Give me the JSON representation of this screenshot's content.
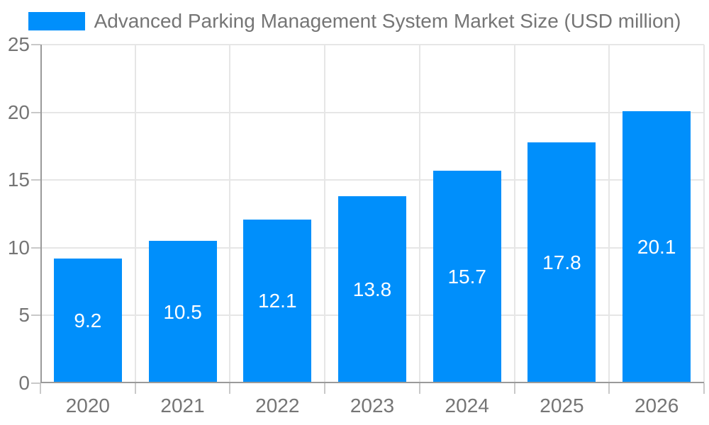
{
  "chart_data": {
    "type": "bar",
    "title": "Advanced Parking Management System Market Size (USD million)",
    "categories": [
      "2020",
      "2021",
      "2022",
      "2023",
      "2024",
      "2025",
      "2026"
    ],
    "values": [
      9.2,
      10.5,
      12.1,
      13.8,
      15.7,
      17.8,
      20.1
    ],
    "value_labels": [
      "9.2",
      "10.5",
      "12.1",
      "13.8",
      "15.7",
      "17.8",
      "20.1"
    ],
    "xlabel": "",
    "ylabel": "",
    "ylim": [
      0,
      25
    ],
    "yticks": [
      0,
      5,
      10,
      15,
      20,
      25
    ],
    "grid": true,
    "legend_position": "top",
    "colors": {
      "bar": "#008FFB",
      "axis_label": "#757575",
      "value_text": "#ffffff",
      "gridline": "#e6e6e6",
      "axis_line": "#9a9a9a",
      "tick": "#c9c9c9",
      "background": "#ffffff"
    }
  }
}
